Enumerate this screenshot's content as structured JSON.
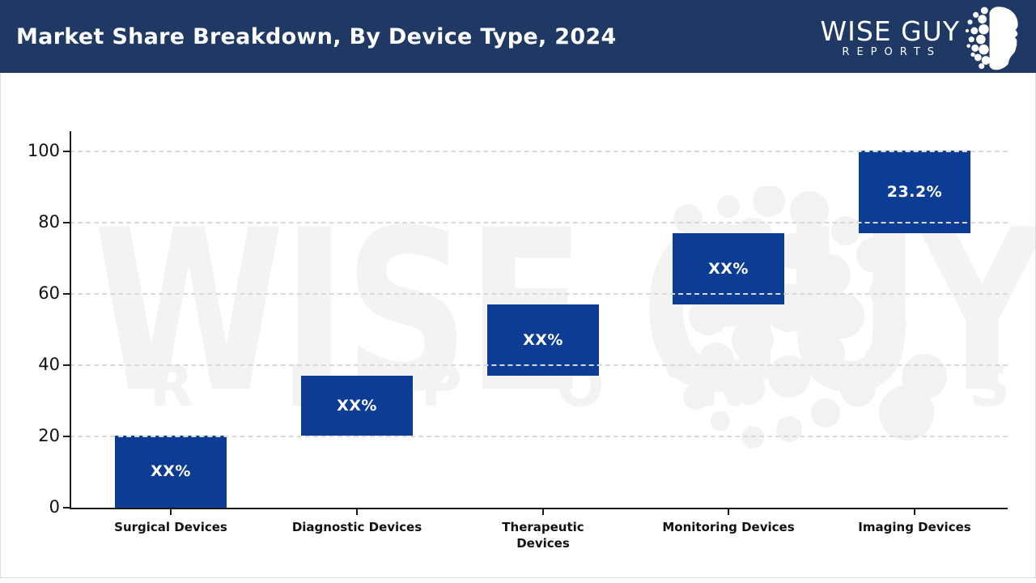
{
  "header": {
    "title": "Market Share Breakdown, By Device Type, 2024",
    "logo": {
      "line1": "WISE GUY",
      "line2": "REPORTS"
    }
  },
  "watermark": {
    "line1": "WISE GUY",
    "line2": "R E P O R T S"
  },
  "colors": {
    "header_bg": "#1f3864",
    "bar_fill": "#0c3c94",
    "grid": "#d9d9d9",
    "axis": "#1a1a1a",
    "bar_label": "#ffffff",
    "watermark": "#f3f3f3"
  },
  "chart_data": {
    "type": "bar",
    "subtype": "waterfall",
    "title": "Market Share Breakdown, By Device Type, 2024",
    "categories": [
      "Surgical Devices",
      "Diagnostic Devices",
      "Therapeutic\nDevices",
      "Monitoring Devices",
      "Imaging Devices"
    ],
    "segments": [
      {
        "category": "Surgical Devices",
        "start": 0,
        "end": 20.3,
        "bar_label": "XX%"
      },
      {
        "category": "Diagnostic Devices",
        "start": 20.3,
        "end": 37,
        "bar_label": "XX%"
      },
      {
        "category": "Therapeutic Devices",
        "start": 37,
        "end": 57,
        "bar_label": "XX%"
      },
      {
        "category": "Monitoring Devices",
        "start": 57,
        "end": 77,
        "bar_label": "XX%"
      },
      {
        "category": "Imaging Devices",
        "start": 77,
        "end": 100.2,
        "bar_label": "23.2%"
      }
    ],
    "yticks": [
      0,
      20,
      40,
      60,
      80,
      100
    ],
    "ytick_labels": [
      "0",
      "20",
      "40",
      "60",
      "80",
      "100"
    ],
    "ylim": [
      0,
      105
    ],
    "xlabel": "",
    "ylabel": "",
    "grid": "horizontal-dashed",
    "legend_position": "none"
  }
}
